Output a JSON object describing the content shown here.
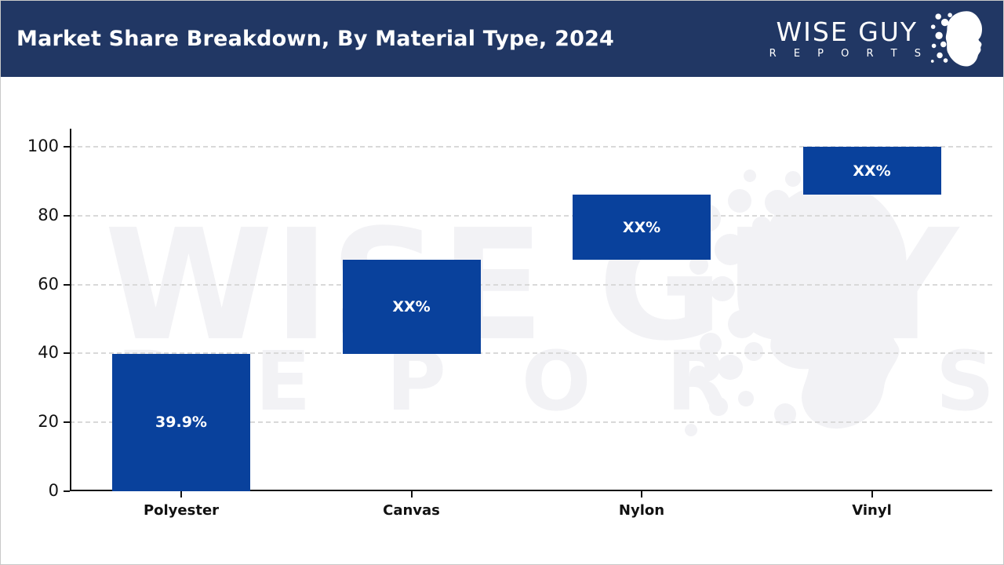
{
  "header": {
    "title": "Market Share Breakdown, By Material Type, 2024",
    "logo": {
      "line1": "WISE GUY",
      "line2": "R E P O R T S"
    }
  },
  "watermark": {
    "line1": "WISE GUY",
    "line2": "R E P O R T S"
  },
  "chart_data": {
    "type": "bar",
    "subtype": "waterfall",
    "title": "Market Share Breakdown, By Material Type, 2024",
    "xlabel": "",
    "ylabel": "",
    "categories": [
      "Polyester",
      "Canvas",
      "Nylon",
      "Vinyl"
    ],
    "segments": [
      {
        "category": "Polyester",
        "start": 0,
        "end": 39.9,
        "label": "39.9%"
      },
      {
        "category": "Canvas",
        "start": 39.9,
        "end": 67.2,
        "label": "XX%"
      },
      {
        "category": "Nylon",
        "start": 67.2,
        "end": 86.1,
        "label": "XX%"
      },
      {
        "category": "Vinyl",
        "start": 86.1,
        "end": 100,
        "label": "XX%"
      }
    ],
    "yticks": [
      0,
      20,
      40,
      60,
      80,
      100
    ],
    "ylim": [
      0,
      105
    ],
    "grid": "horizontal-dashed",
    "legend": "none"
  },
  "colors": {
    "header_bg": "#213764",
    "bar_blue": "#09419c",
    "grid_gray": "#d9d9d9",
    "axis_black": "#111111",
    "watermark_gray": "#f2f2f5",
    "white": "#ffffff"
  }
}
